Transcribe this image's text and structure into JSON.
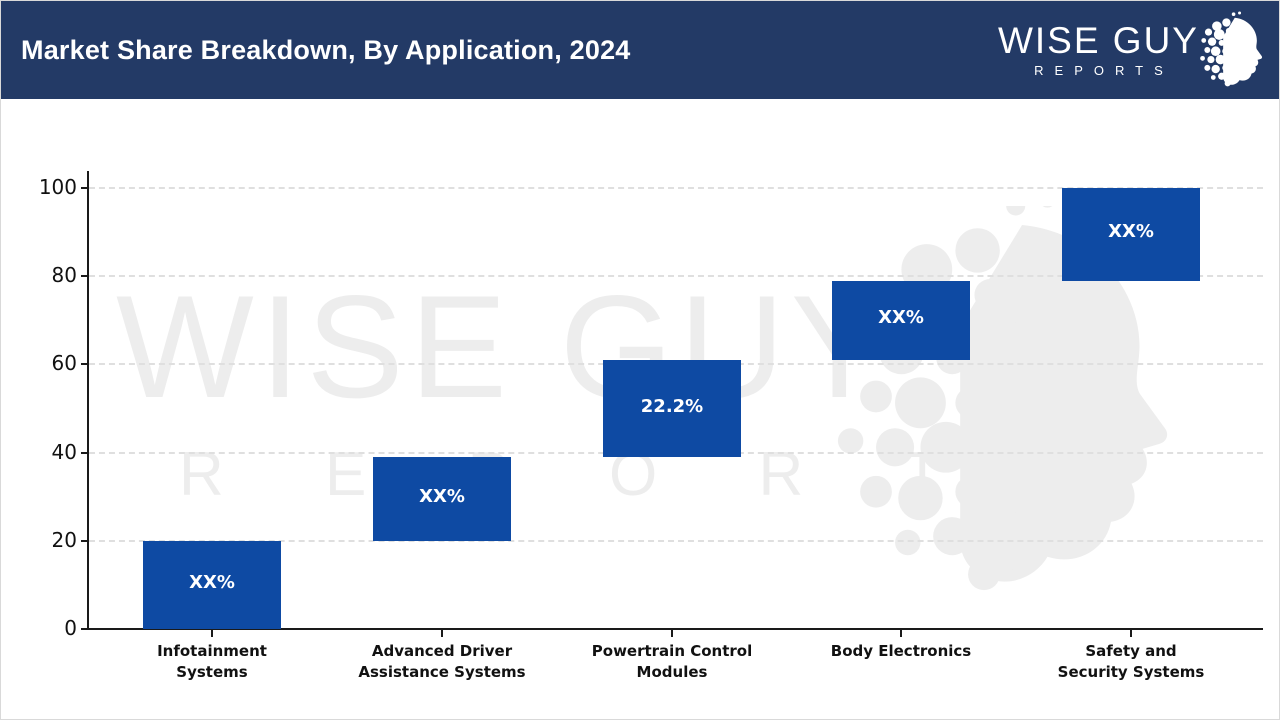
{
  "header": {
    "title": "Market Share Breakdown, By Application, 2024",
    "logo": {
      "line1": "WISE GUY",
      "line2": "REPORTS"
    }
  },
  "watermark": {
    "line1": "WISE GUY",
    "line2": "R E P O R T S"
  },
  "colors": {
    "header_bg": "#233a66",
    "bar": "#0e4aa3",
    "grid": "#dfdfdf",
    "axis": "#1a1a1a",
    "bar_label": "#ffffff",
    "watermark": "#ededed"
  },
  "chart_data": {
    "type": "bar",
    "subtype": "waterfall",
    "title": "Market Share Breakdown, By Application, 2024",
    "xlabel": "",
    "ylabel": "",
    "ylim": [
      0,
      104
    ],
    "yticks": [
      0,
      20,
      40,
      60,
      80,
      100
    ],
    "grid": "horizontal-dashed",
    "legend": false,
    "categories": [
      "Infotainment\nSystems",
      "Advanced Driver\nAssistance Systems",
      "Powertrain Control\nModules",
      "Body Electronics",
      "Safety and\nSecurity Systems"
    ],
    "bars": [
      {
        "category": "Infotainment Systems",
        "start": 0,
        "end": 20,
        "height_est": 20,
        "label": "XX%"
      },
      {
        "category": "Advanced Driver Assistance Systems",
        "start": 20,
        "end": 38.9,
        "height_est": 18.9,
        "label": "XX%"
      },
      {
        "category": "Powertrain Control Modules",
        "start": 38.9,
        "end": 61.1,
        "height_est": 22.2,
        "label": "22.2%"
      },
      {
        "category": "Body Electronics",
        "start": 61.1,
        "end": 79,
        "height_est": 17.9,
        "label": "XX%"
      },
      {
        "category": "Safety and Security Systems",
        "start": 79,
        "end": 100,
        "height_est": 21,
        "label": "XX%"
      }
    ],
    "bar_color": "#0e4aa3"
  }
}
